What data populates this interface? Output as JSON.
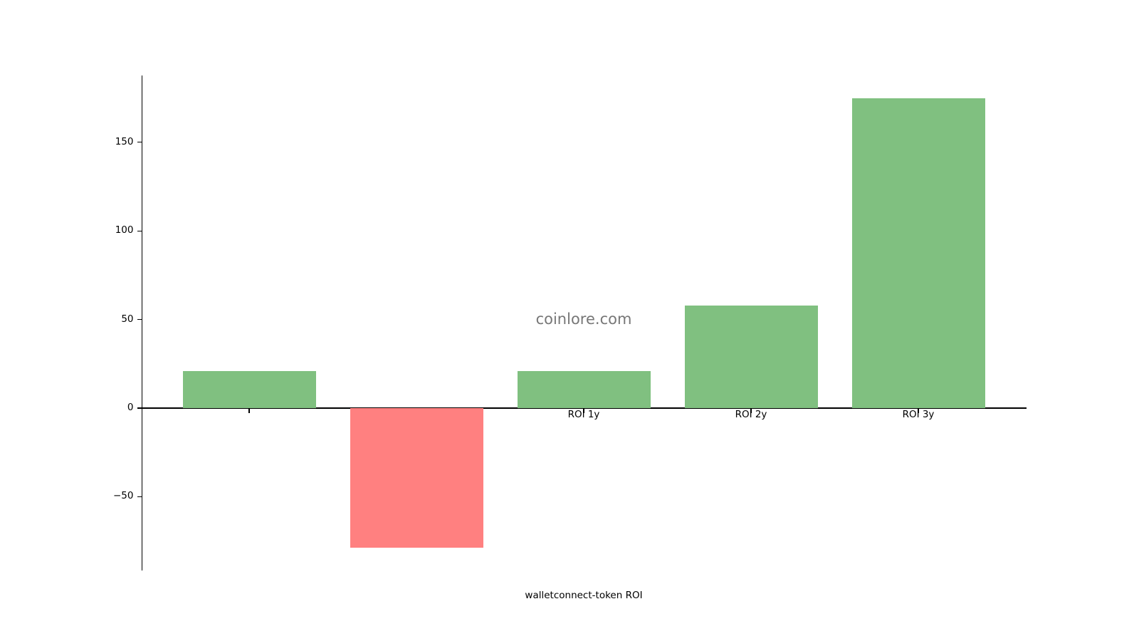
{
  "watermark_text": "coinlore.com",
  "chart_data": {
    "type": "bar",
    "title": "",
    "xlabel": "walletconnect-token ROI",
    "ylabel": "",
    "watermark": "coinlore.com",
    "categories": [
      "",
      "",
      "ROI 1y",
      "ROI 2y",
      "ROI 3y"
    ],
    "values": [
      21,
      -79,
      21,
      58,
      175
    ],
    "positive_color": "#80c080",
    "negative_color": "#ff8080",
    "axis_color": "#000000",
    "tick_label_color": "#000000",
    "watermark_color": "#777777",
    "yticks": [
      150,
      100,
      50,
      0,
      -50
    ],
    "xticks": [
      {
        "index": 0,
        "label": ""
      },
      {
        "index": 2,
        "label": "ROI 1y"
      },
      {
        "index": 3,
        "label": "ROI 2y"
      },
      {
        "index": 4,
        "label": "ROI 3y"
      }
    ],
    "ylim": [
      -91.7,
      187.7
    ],
    "grid": false,
    "legend": null
  }
}
